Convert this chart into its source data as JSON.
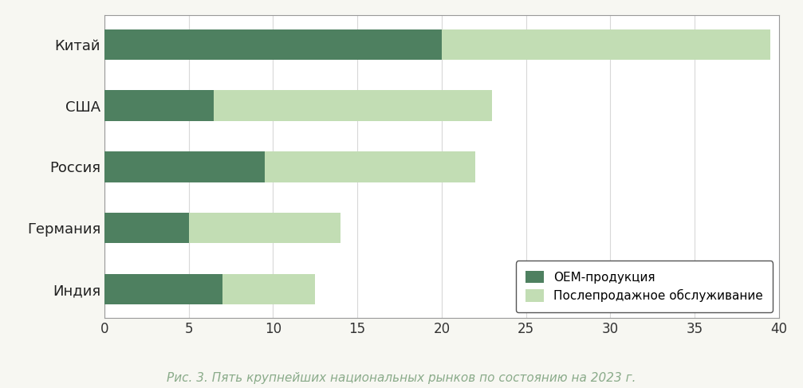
{
  "categories": [
    "Индия",
    "Германия",
    "Россия",
    "США",
    "Китай"
  ],
  "oem_values": [
    7,
    5,
    9.5,
    6.5,
    20
  ],
  "after_values": [
    12.5,
    14,
    22,
    23,
    39.5
  ],
  "oem_color": "#4e8060",
  "after_color": "#c2ddb4",
  "background_color": "#f7f7f2",
  "plot_bg_color": "#ffffff",
  "title": "Рис. 3. Пять крупнейших национальных рынков по состоянию на 2023 г.",
  "title_color": "#8aab8a",
  "legend_oem": "ОЕМ-продукция",
  "legend_after": "Послепродажное обслуживание",
  "xlim": [
    0,
    40
  ],
  "xticks": [
    0,
    5,
    10,
    15,
    20,
    25,
    30,
    35,
    40
  ],
  "bar_height": 0.5,
  "grid_color": "#d8d8d8",
  "spine_color": "#999999",
  "tick_fontsize": 12,
  "ylabel_fontsize": 13,
  "title_fontsize": 11
}
